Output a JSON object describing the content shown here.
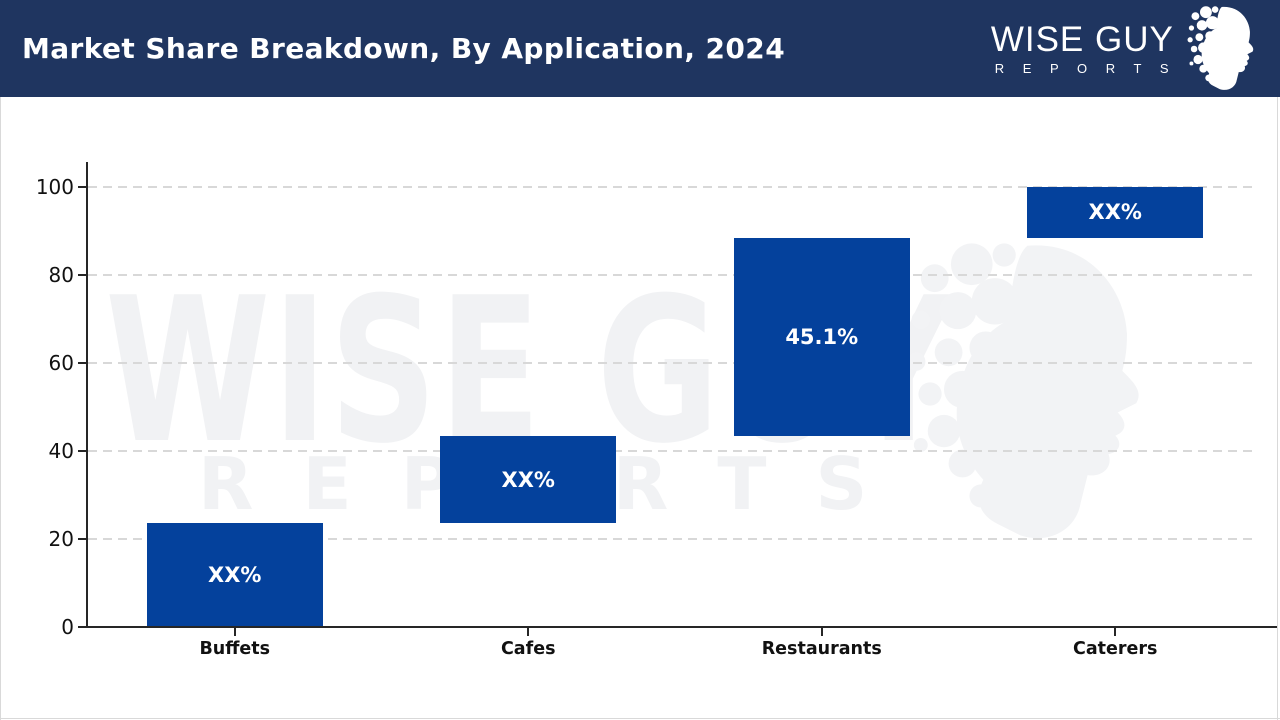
{
  "header": {
    "title": "Market Share Breakdown, By Application, 2024",
    "logo_line1": "WISE GUY",
    "logo_line2": "R E P O R T S"
  },
  "watermark": {
    "big_text": "WISE GUY",
    "small_text": "R E P O R T S"
  },
  "colors": {
    "header_bg": "#1f3560",
    "bar": "#04419c",
    "bar_label": "#ffffff",
    "axis": "#262626",
    "grid": "#d8d8d8",
    "watermark": "#f1f2f4"
  },
  "chart_data": {
    "type": "bar",
    "subtype": "floating-waterfall",
    "title": "Market Share Breakdown, By Application, 2024",
    "categories": [
      "Buffets",
      "Cafes",
      "Restaurants",
      "Caterers"
    ],
    "segments": [
      {
        "category": "Buffets",
        "start": 0,
        "end": 23.6,
        "value_label": "XX%"
      },
      {
        "category": "Cafes",
        "start": 23.6,
        "end": 43.4,
        "value_label": "XX%"
      },
      {
        "category": "Restaurants",
        "start": 43.4,
        "end": 88.5,
        "value_label": "45.1%"
      },
      {
        "category": "Caterers",
        "start": 88.5,
        "end": 100,
        "value_label": "XX%"
      }
    ],
    "ylim": [
      0,
      100
    ],
    "yticks": [
      0,
      20,
      40,
      60,
      80,
      100
    ],
    "grid": "horizontal-dashed",
    "legend": "none",
    "xlabel": "",
    "ylabel": ""
  }
}
